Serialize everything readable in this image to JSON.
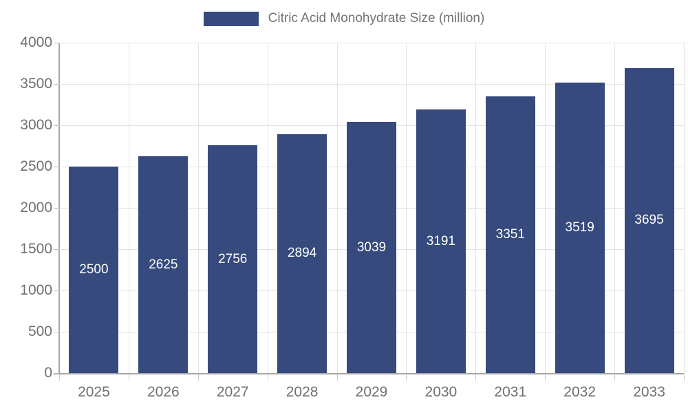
{
  "legend": {
    "label": "Citric Acid Monohydrate Size (million)",
    "swatch_color": "#364a7d"
  },
  "chart_data": {
    "type": "bar",
    "title": "Citric Acid Monohydrate Size (million)",
    "categories": [
      "2025",
      "2026",
      "2027",
      "2028",
      "2029",
      "2030",
      "2031",
      "2032",
      "2033"
    ],
    "values": [
      2500,
      2625,
      2756,
      2894,
      3039,
      3191,
      3351,
      3519,
      3695
    ],
    "xlabel": "",
    "ylabel": "",
    "ylim": [
      0,
      4000
    ],
    "yticks": [
      0,
      500,
      1000,
      1500,
      2000,
      2500,
      3000,
      3500,
      4000
    ],
    "grid": true,
    "legend_position": "top",
    "value_labels": "inside-center"
  },
  "colors": {
    "bar": "#364a7d",
    "grid": "#e3e3e3",
    "axis": "#a7a7a7",
    "tick_text": "#6f6f6f",
    "legend_text": "#737373",
    "value_label_text": "#ffffff",
    "background": "#ffffff"
  }
}
